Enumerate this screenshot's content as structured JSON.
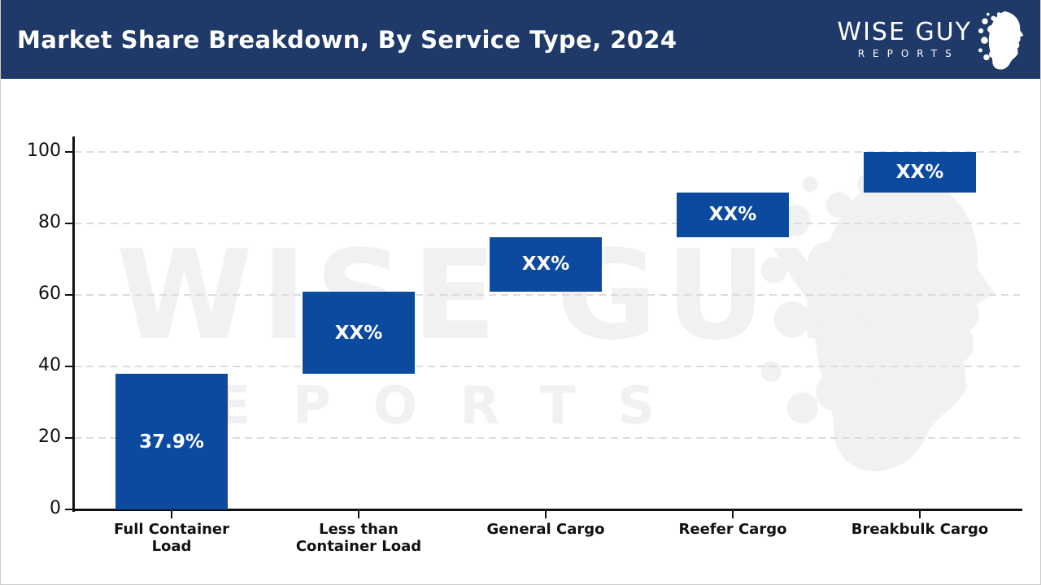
{
  "header": {
    "title": "Market Share Breakdown, By Service Type, 2024",
    "bg_color": "#1f3a68",
    "logo": {
      "line1": "WISE GUY",
      "line2": "REPORTS"
    }
  },
  "watermark": {
    "line1": "WISE GUY",
    "line2": "REPORTS",
    "color": "#f1f1f4"
  },
  "chart_data": {
    "type": "bar",
    "subtype": "waterfall",
    "title": "Market Share Breakdown, By Service Type, 2024",
    "categories": [
      "Full Container Load",
      "Less than Container Load",
      "General Cargo",
      "Reefer Cargo",
      "Breakbulk Cargo"
    ],
    "category_label_lines": [
      [
        "Full Container",
        "Load"
      ],
      [
        "Less than",
        "Container Load"
      ],
      [
        "General Cargo"
      ],
      [
        "Reefer Cargo"
      ],
      [
        "Breakbulk Cargo"
      ]
    ],
    "segments": [
      {
        "category": "Full Container Load",
        "start": 0,
        "end": 37.9,
        "label": "37.9%"
      },
      {
        "category": "Less than Container Load",
        "start": 37.9,
        "end": 60.9,
        "label": "XX%"
      },
      {
        "category": "General Cargo",
        "start": 60.9,
        "end": 76.2,
        "label": "XX%"
      },
      {
        "category": "Reefer Cargo",
        "start": 76.2,
        "end": 88.6,
        "label": "XX%"
      },
      {
        "category": "Breakbulk Cargo",
        "start": 88.6,
        "end": 100,
        "label": "XX%"
      }
    ],
    "yticks": [
      0,
      20,
      40,
      60,
      80,
      100
    ],
    "ylim": [
      0,
      104
    ],
    "xlabel": "",
    "ylabel": "",
    "legend": "none",
    "grid": "horizontal-dashed",
    "bar_color": "#0c4aa0",
    "value_label_color": "#ffffff",
    "axis_color": "#111111",
    "tick_label_color": "#111111",
    "gridline_color": "#dcdcdc"
  }
}
